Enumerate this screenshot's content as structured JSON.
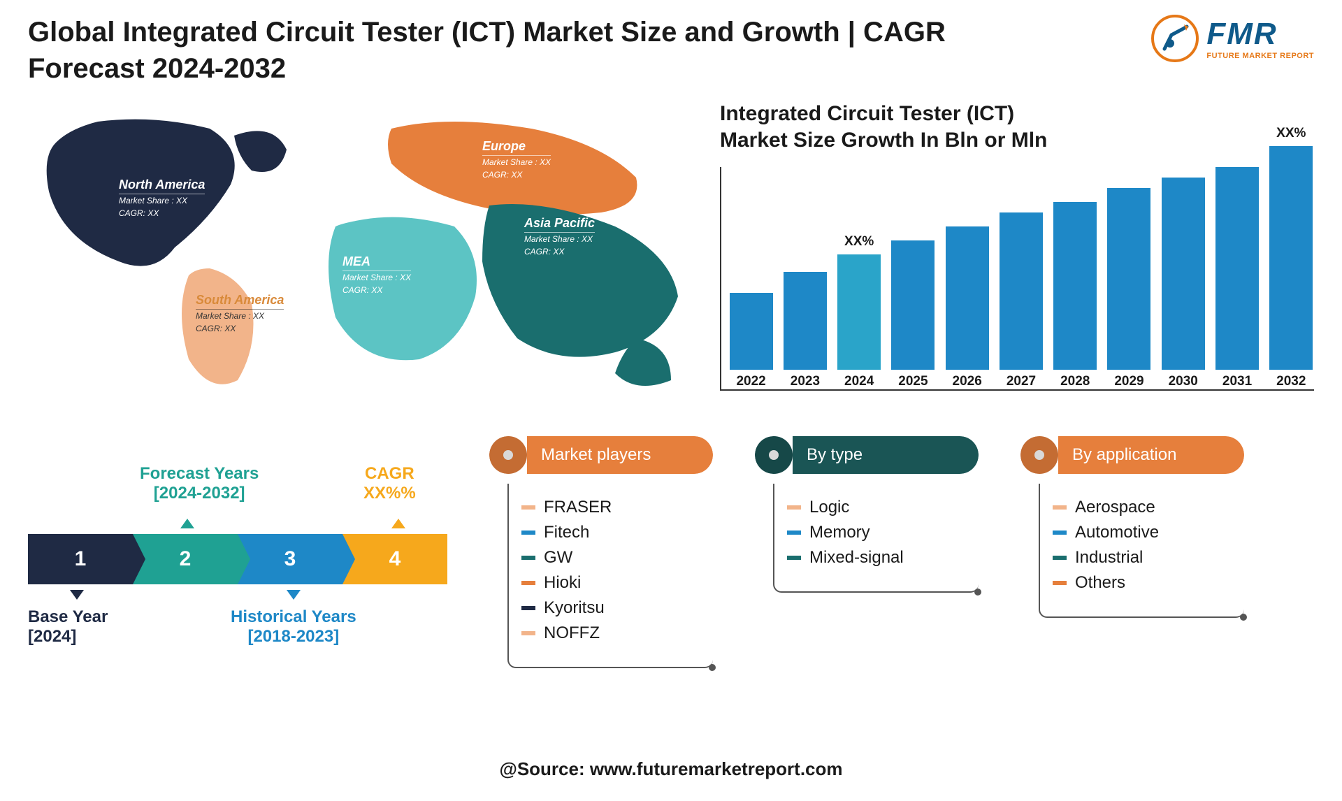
{
  "title": "Global Integrated Circuit Tester (ICT) Market Size and Growth | CAGR Forecast 2024-2032",
  "logo": {
    "fmr": "FMR",
    "sub": "FUTURE MARKET REPORT"
  },
  "map": {
    "regions": [
      {
        "id": "na",
        "name": "North America",
        "share": "Market Share : XX",
        "cagr": "CAGR: XX",
        "color": "#1f2a44"
      },
      {
        "id": "sa",
        "name": "South America",
        "share": "Market Share : XX",
        "cagr": "CAGR: XX",
        "color": "#f2b48a"
      },
      {
        "id": "eu",
        "name": "Europe",
        "share": "Market Share : XX",
        "cagr": "CAGR: XX",
        "color": "#e67f3c"
      },
      {
        "id": "mea",
        "name": "MEA",
        "share": "Market Share : XX",
        "cagr": "CAGR: XX",
        "color": "#5cc4c4"
      },
      {
        "id": "ap",
        "name": "Asia Pacific",
        "share": "Market Share : XX",
        "cagr": "CAGR: XX",
        "color": "#1a6e6e"
      }
    ]
  },
  "chart": {
    "title": "Integrated Circuit Tester (ICT) Market Size Growth In Bln or Mln",
    "bar_color_primary": "#1e88c7",
    "bar_color_alt": "#2aa4c9",
    "years": [
      "2022",
      "2023",
      "2024",
      "2025",
      "2026",
      "2027",
      "2028",
      "2029",
      "2030",
      "2031",
      "2032"
    ],
    "heights": [
      110,
      140,
      165,
      185,
      205,
      225,
      240,
      260,
      275,
      290,
      320
    ],
    "note_2024": "XX%",
    "note_2032": "XX%",
    "axis_color": "#333333",
    "background_color": "#ffffff"
  },
  "timeline": {
    "base": {
      "label": "Base Year",
      "range": "[2024]",
      "color": "#1f2a44"
    },
    "forecast": {
      "label": "Forecast Years",
      "range": "[2024-2032]",
      "color": "#1fa193"
    },
    "historical": {
      "label": "Historical Years",
      "range": "[2018-2023]",
      "color": "#1e88c7"
    },
    "cagr": {
      "label": "CAGR",
      "range": "XX%%",
      "color": "#f6a81c"
    },
    "seg_labels": [
      "1",
      "2",
      "3",
      "4"
    ]
  },
  "categories": [
    {
      "title": "Market players",
      "header_color": "#e67f3c",
      "items": [
        "FRASER",
        "Fitech",
        "GW",
        "Hioki",
        "Kyoritsu",
        "NOFFZ"
      ],
      "tick_colors": [
        "#f2b48a",
        "#1e88c7",
        "#1a6e6e",
        "#e67f3c",
        "#1f2a44",
        "#f2b48a"
      ]
    },
    {
      "title": "By type",
      "header_color": "#1a5555",
      "items": [
        "Logic",
        "Memory",
        "Mixed-signal"
      ],
      "tick_colors": [
        "#f2b48a",
        "#1e88c7",
        "#1a6e6e"
      ]
    },
    {
      "title": "By application",
      "header_color": "#e67f3c",
      "items": [
        "Aerospace",
        "Automotive",
        "Industrial",
        "Others"
      ],
      "tick_colors": [
        "#f2b48a",
        "#1e88c7",
        "#1a6e6e",
        "#e67f3c"
      ]
    }
  ],
  "source": "@Source: www.futuremarketreport.com"
}
